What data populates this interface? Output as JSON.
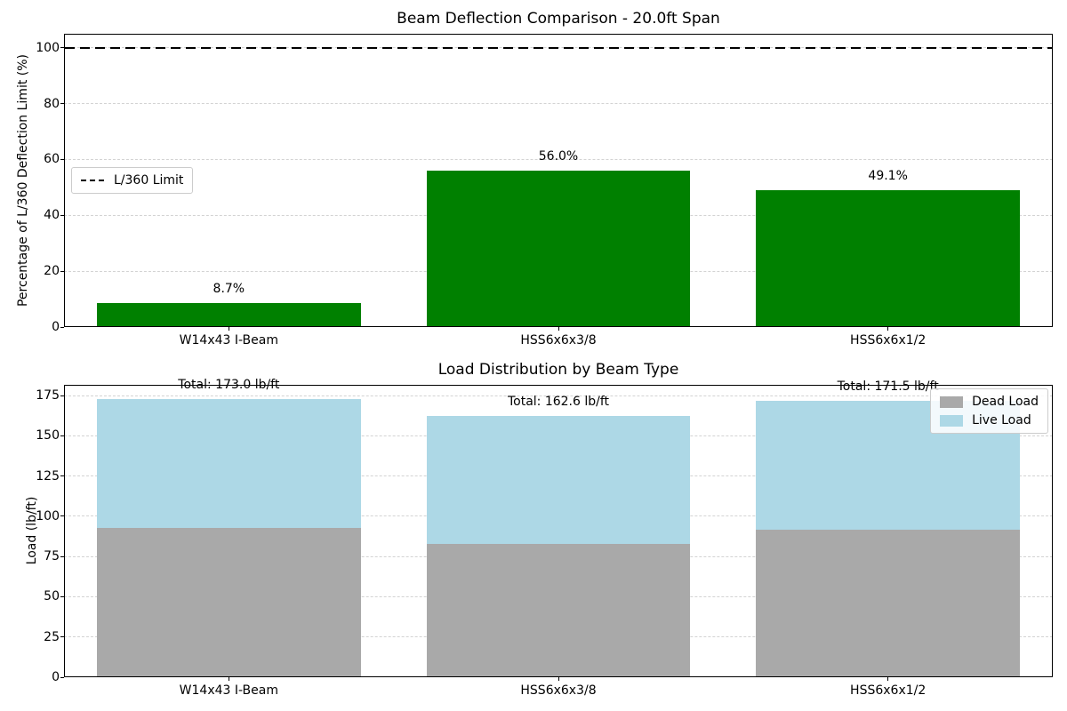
{
  "figure": {
    "background": "#ffffff"
  },
  "chart_data": [
    {
      "type": "bar",
      "title": "Beam Deflection Comparison - 20.0ft Span",
      "xlabel": "",
      "ylabel": "Percentage of L/360 Deflection Limit (%)",
      "categories": [
        "W14x43 I-Beam",
        "HSS6x6x3/8",
        "HSS6x6x1/2"
      ],
      "values": [
        8.7,
        56.0,
        49.1
      ],
      "bar_labels": [
        "8.7%",
        "56.0%",
        "49.1%"
      ],
      "bar_color": "#008000",
      "yticks": [
        0,
        20,
        40,
        60,
        80,
        100
      ],
      "ylim": [
        0,
        105
      ],
      "grid": "horizontal-dashed",
      "reference_line": {
        "value": 100,
        "style": "dashed",
        "color": "#000000",
        "label": "L/360 Limit"
      },
      "legend": {
        "position": "center-left",
        "entries": [
          {
            "label": "L/360 Limit",
            "swatch": "dashed-line",
            "color": "#000000"
          }
        ]
      }
    },
    {
      "type": "stacked-bar",
      "title": "Load Distribution by Beam Type",
      "xlabel": "",
      "ylabel": "Load (lb/ft)",
      "categories": [
        "W14x43 I-Beam",
        "HSS6x6x3/8",
        "HSS6x6x1/2"
      ],
      "series": [
        {
          "name": "Dead Load",
          "values": [
            93.0,
            82.6,
            91.5
          ],
          "color": "#a9a9a9"
        },
        {
          "name": "Live Load",
          "values": [
            80.0,
            80.0,
            80.0
          ],
          "color": "#add8e6"
        }
      ],
      "totals": [
        "Total: 173.0 lb/ft",
        "Total: 162.6 lb/ft",
        "Total: 171.5 lb/ft"
      ],
      "total_values": [
        173.0,
        162.6,
        171.5
      ],
      "yticks": [
        0,
        25,
        50,
        75,
        100,
        125,
        150,
        175
      ],
      "ylim": [
        0,
        181.65
      ],
      "grid": "horizontal-dashed",
      "legend": {
        "position": "upper-right",
        "entries": [
          {
            "label": "Dead Load",
            "swatch": "rect",
            "color": "#a9a9a9"
          },
          {
            "label": "Live Load",
            "swatch": "rect",
            "color": "#add8e6"
          }
        ]
      }
    }
  ]
}
